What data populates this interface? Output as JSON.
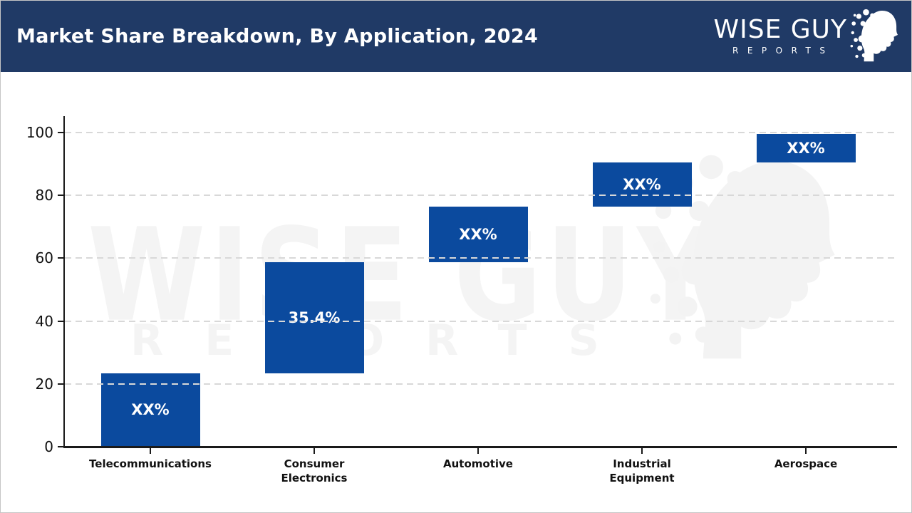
{
  "header": {
    "title": "Market Share Breakdown, By Application, 2024",
    "bg_color": "#203a66",
    "logo": {
      "line1": "WISE GUY",
      "line2": "REPORTS"
    }
  },
  "watermark": {
    "line1": "WISE GUY",
    "line2": "REPORTS"
  },
  "chart_data": {
    "type": "bar",
    "subtype": "floating-waterfall",
    "title": "Market Share Breakdown, By Application, 2024",
    "categories": [
      [
        "Telecommunications"
      ],
      [
        "Consumer",
        "Electronics"
      ],
      [
        "Automotive"
      ],
      [
        "Industrial",
        "Equipment"
      ],
      [
        "Aerospace"
      ]
    ],
    "bars": [
      {
        "category": "Telecommunications",
        "start": 0,
        "end": 23.4,
        "label": "XX%"
      },
      {
        "category": "Consumer Electronics",
        "start": 23.4,
        "end": 58.8,
        "label": "35.4%"
      },
      {
        "category": "Automotive",
        "start": 58.8,
        "end": 76.4,
        "label": "XX%"
      },
      {
        "category": "Industrial Equipment",
        "start": 76.4,
        "end": 90.5,
        "label": "XX%"
      },
      {
        "category": "Aerospace",
        "start": 90.5,
        "end": 99.6,
        "label": "XX%"
      }
    ],
    "yticks": [
      0,
      20,
      40,
      60,
      80,
      100
    ],
    "ylim": [
      0,
      105
    ],
    "xlabel": "",
    "ylabel": "",
    "grid": "dashed-horizontal",
    "legend": "none",
    "bar_color": "#0b4a9e",
    "bar_label_color": "#ffffff",
    "axis_color": "#1a1a1a",
    "gridline_color": "#d8d8d8"
  }
}
